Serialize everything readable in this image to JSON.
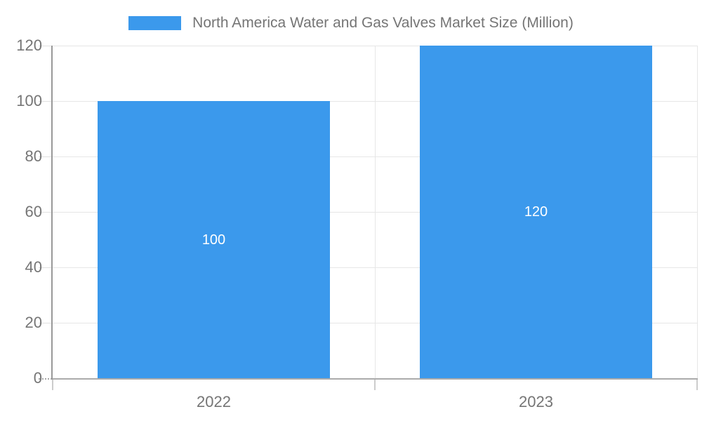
{
  "legend": {
    "label": "North America Water and Gas Valves Market Size (Million)"
  },
  "chart_data": {
    "type": "bar",
    "title": "North America Water and Gas Valves Market Size (Million)",
    "categories": [
      "2022",
      "2023"
    ],
    "series": [
      {
        "name": "North America Water and Gas Valves Market Size (Million)",
        "values": [
          100,
          120
        ]
      }
    ],
    "data_labels": [
      "100",
      "120"
    ],
    "xlabel": "",
    "ylabel": "",
    "ylim": [
      0,
      120
    ],
    "yticks": [
      0,
      20,
      40,
      60,
      80,
      100,
      120
    ],
    "grid": true,
    "legend_position": "top",
    "colors": {
      "bar": "#3B99EC",
      "data_label": "#ffffff",
      "axis_text": "#757575",
      "legend_text": "#757575",
      "gridline": "#e6e6e6",
      "axis_line_y": "#999999",
      "axis_line_x": "#ababab",
      "tick": "#cccccc"
    }
  }
}
